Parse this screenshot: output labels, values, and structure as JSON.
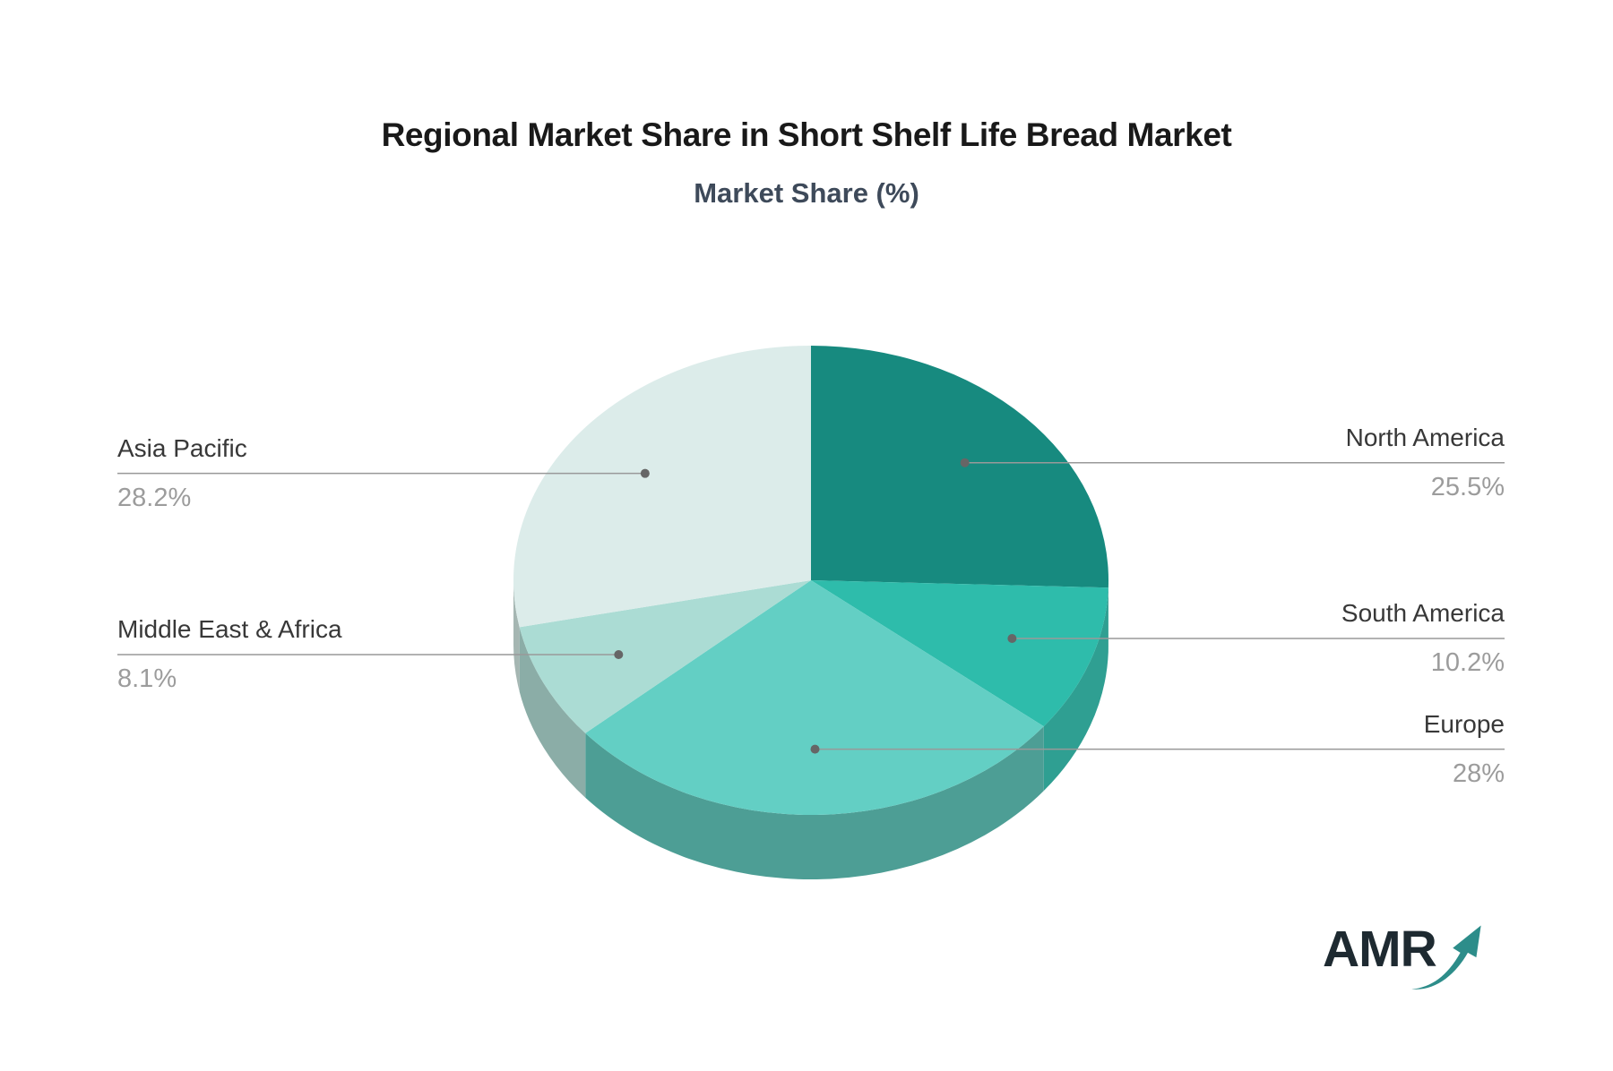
{
  "header": {
    "title": "Regional Market Share in Short Shelf Life Bread Market",
    "subtitle": "Market Share (%)"
  },
  "chart_data": {
    "type": "pie",
    "title": "Regional Market Share in Short Shelf Life Bread Market",
    "subtitle": "Market Share (%)",
    "unit": "%",
    "effect": "3d",
    "start_angle_deg": 0,
    "direction": "clockwise",
    "legend_position": "none",
    "slices": [
      {
        "label": "North America",
        "value": 25.5,
        "display": "25.5%",
        "color": "#178a7f",
        "side_color": "#15776e",
        "label_side": "right"
      },
      {
        "label": "South America",
        "value": 10.2,
        "display": "10.2%",
        "color": "#2ebcab",
        "side_color": "#2f9f92",
        "label_side": "right"
      },
      {
        "label": "Europe",
        "value": 28,
        "display": "28%",
        "color": "#63cfc4",
        "side_color": "#4d9e95",
        "label_side": "right"
      },
      {
        "label": "Middle East & Africa",
        "value": 8.1,
        "display": "8.1%",
        "color": "#abdcd4",
        "side_color": "#8bada7",
        "label_side": "left"
      },
      {
        "label": "Asia Pacific",
        "value": 28.2,
        "display": "28.2%",
        "color": "#dcecea",
        "side_color": "#a5b6b2",
        "label_side": "left"
      }
    ],
    "label_name_color": "#383838",
    "label_value_color": "#9c9c9c",
    "leader_line_color": "#999999",
    "leader_dot_color": "#666666",
    "background_color": "#ffffff"
  },
  "logo": {
    "text": "AMR",
    "text_color": "#1e2a31",
    "arrow_color": "#2d8d8a"
  }
}
